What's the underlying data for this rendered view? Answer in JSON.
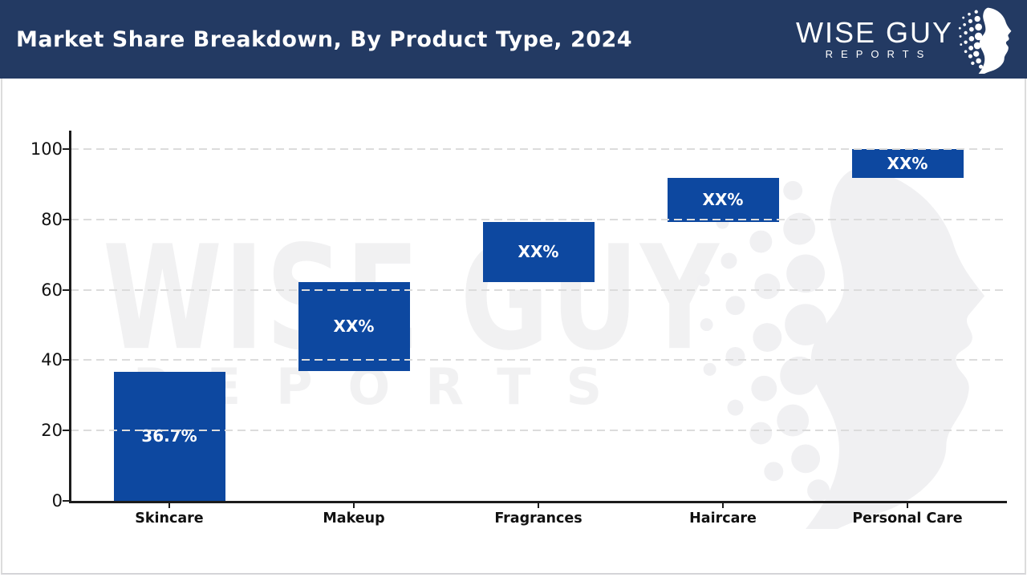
{
  "header": {
    "logo": {
      "line1": "WISE GUY",
      "line2": "REPORTS"
    }
  },
  "watermark": {
    "line1": "WISE GUY",
    "line2": "REPORTS"
  },
  "colors": {
    "header_background": "#233a63",
    "bar_blue": "#0d48a0",
    "gridline_gray": "#dcdcdc",
    "axis_black": "#1c1c1c",
    "watermark_gray": "#f1f1f2",
    "label_white": "#ffffff"
  },
  "chart_data": {
    "type": "bar",
    "subtype": "waterfall",
    "title": "Market Share Breakdown, By Product Type, 2024",
    "categories": [
      "Skincare",
      "Makeup",
      "Fragrances",
      "Haircare",
      "Personal Care"
    ],
    "segments": [
      {
        "category": "Skincare",
        "start": 0,
        "end": 36.7,
        "label": "36.7%"
      },
      {
        "category": "Makeup",
        "start": 37,
        "end": 62.2,
        "label": "XX%"
      },
      {
        "category": "Fragrances",
        "start": 62.2,
        "end": 79.3,
        "label": "XX%"
      },
      {
        "category": "Haircare",
        "start": 79.3,
        "end": 91.8,
        "label": "XX%"
      },
      {
        "category": "Personal Care",
        "start": 91.8,
        "end": 100,
        "label": "XX%"
      }
    ],
    "yticks": [
      0,
      20,
      40,
      60,
      80,
      100
    ],
    "ylim": [
      0,
      105
    ],
    "xlabel": "",
    "ylabel": "",
    "grid": "horizontal-dashed",
    "grid_above_bars": true,
    "legend": "none",
    "bar_color": "#0d48a0",
    "bar_label_color": "#ffffff"
  }
}
